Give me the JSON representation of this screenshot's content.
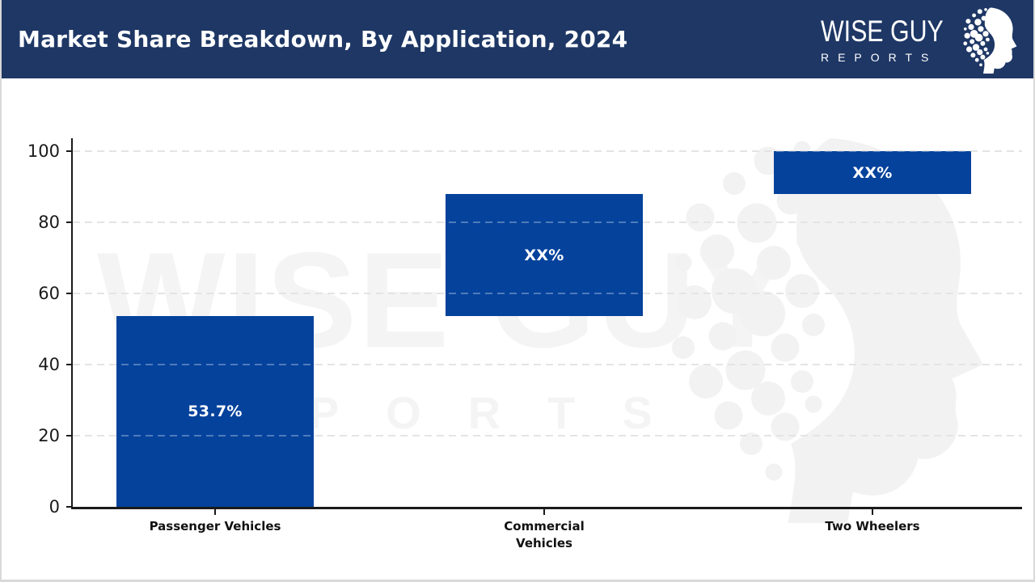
{
  "header": {
    "title": "Market Share Breakdown, By Application, 2024",
    "logo": {
      "line1": "WISE GUY",
      "line2": "REPORTS"
    }
  },
  "watermark": {
    "line1": "WISE GUY",
    "line2": "REPORTS"
  },
  "chart_data": {
    "type": "bar",
    "subtype": "stacked-waterfall-segments",
    "title": "Market Share Breakdown, By Application, 2024",
    "categories": [
      "Passenger Vehicles",
      "Commercial\nVehicles",
      "Two Wheelers"
    ],
    "series": [
      {
        "name": "Passenger Vehicles",
        "start": 0,
        "end": 53.7,
        "label": "53.7%"
      },
      {
        "name": "Commercial Vehicles",
        "start": 53.7,
        "end": 88,
        "label": "XX%"
      },
      {
        "name": "Two Wheelers",
        "start": 88,
        "end": 100,
        "label": "XX%"
      }
    ],
    "yticks": [
      0,
      20,
      40,
      60,
      80,
      100
    ],
    "ylim": [
      0,
      100
    ],
    "xlabel": "",
    "ylabel": "",
    "grid": "dashed-horizontal",
    "legend": "none",
    "bar_color": "#04429c",
    "bar_label_color": "#ffffff",
    "axis_color": "#1a1a1a",
    "gridline_color": "#d8d8d8"
  },
  "colors": {
    "header_bg": "#1e3765",
    "canvas_bg": "#ffffff",
    "watermark": "#f4f4f4",
    "frame_border": "#d9d9d9"
  }
}
